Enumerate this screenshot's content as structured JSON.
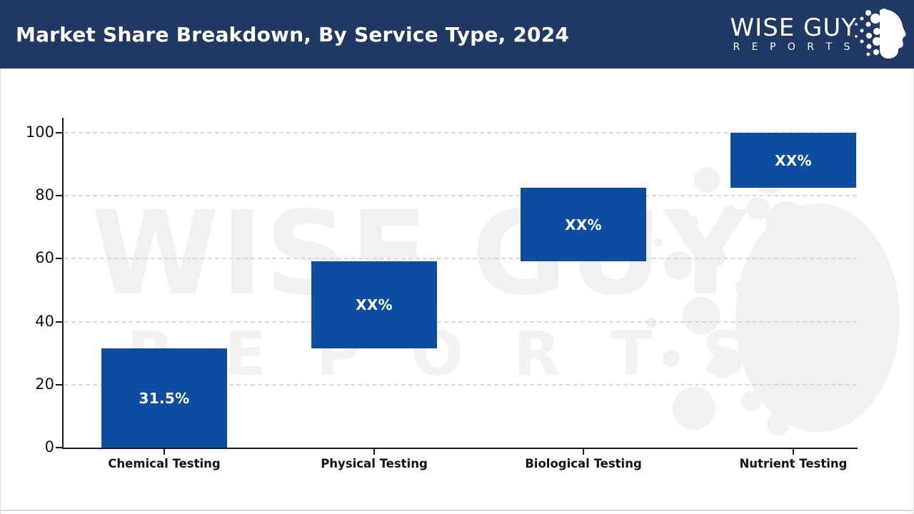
{
  "header": {
    "title": "Market Share Breakdown, By Service Type, 2024",
    "logo": {
      "name": "WISE GUY",
      "sub": "R E P O R T S"
    }
  },
  "watermark": {
    "line1": "WISE GUY",
    "line2": "R E P O R T S"
  },
  "chart_data": {
    "type": "bar",
    "subtype": "waterfall",
    "title": "Market Share Breakdown, By Service Type, 2024",
    "categories": [
      "Chemical Testing",
      "Physical Testing",
      "Biological Testing",
      "Nutrient Testing"
    ],
    "segments": [
      {
        "category": "Chemical Testing",
        "start": 0,
        "end": 31.5,
        "label": "31.5%"
      },
      {
        "category": "Physical Testing",
        "start": 31.5,
        "end": 59.2,
        "label": "XX%"
      },
      {
        "category": "Biological Testing",
        "start": 59.2,
        "end": 82.5,
        "label": "XX%"
      },
      {
        "category": "Nutrient Testing",
        "start": 82.5,
        "end": 100,
        "label": "XX%"
      }
    ],
    "y_ticks": [
      0,
      20,
      40,
      60,
      80,
      100
    ],
    "ylim": [
      0,
      105
    ],
    "xlabel": "",
    "ylabel": "",
    "legend": "none",
    "grid": "horizontal-dashed",
    "bar_color": "#0d4da1",
    "bar_label_color": "#ffffff",
    "axis_color": "#1a1a1a",
    "grid_color": "#d9d9d9"
  },
  "colors": {
    "header_bg": "#1f3864",
    "page_bg": "#ffffff",
    "watermark": "#f1f1f1"
  }
}
